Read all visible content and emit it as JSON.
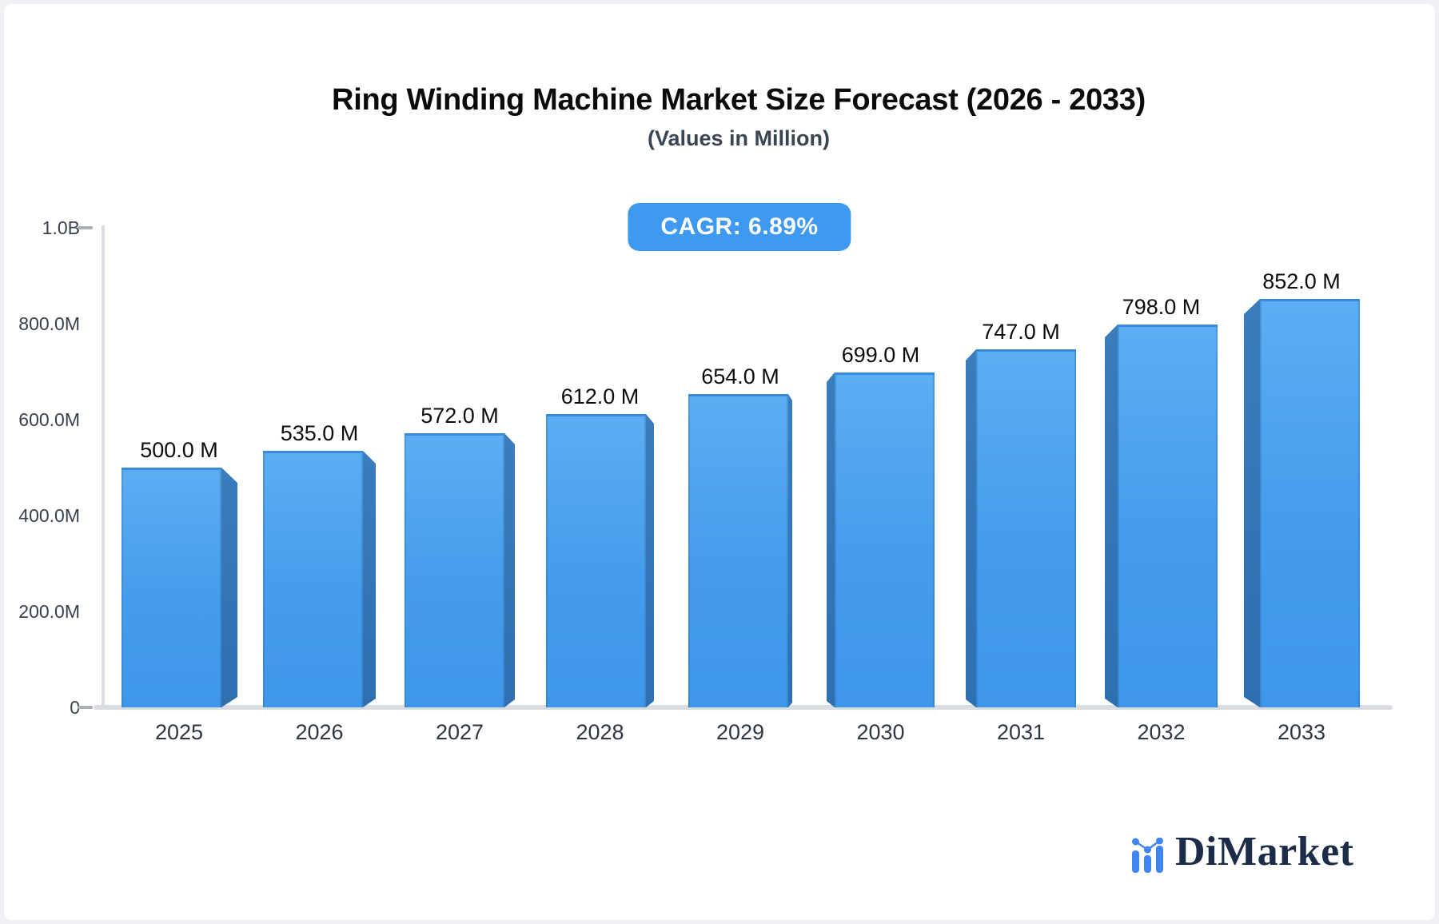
{
  "header": {
    "title": "Ring Winding Machine Market Size Forecast (2026 - 2033)",
    "subtitle": "(Values in Million)",
    "cagr_badge": "CAGR: 6.89%"
  },
  "chart_data": {
    "type": "bar",
    "title": "Ring Winding Machine Market Size Forecast (2026 - 2033)",
    "subtitle": "(Values in Million)",
    "cagr": "6.89%",
    "categories": [
      "2025",
      "2026",
      "2027",
      "2028",
      "2029",
      "2030",
      "2031",
      "2032",
      "2033"
    ],
    "values": [
      500,
      535,
      572,
      612,
      654,
      699,
      747,
      798,
      852
    ],
    "value_labels": [
      "500.0 M",
      "535.0 M",
      "572.0 M",
      "612.0 M",
      "654.0 M",
      "699.0 M",
      "747.0 M",
      "798.0 M",
      "852.0 M"
    ],
    "ylim": [
      0,
      1000
    ],
    "yticks": [
      {
        "label": "0",
        "value": 0
      },
      {
        "label": "200.0M",
        "value": 200
      },
      {
        "label": "400.0M",
        "value": 400
      },
      {
        "label": "600.0M",
        "value": 600
      },
      {
        "label": "800.0M",
        "value": 800
      },
      {
        "label": "1.0B",
        "value": 1000
      }
    ],
    "grid": false,
    "legend": null,
    "bar_face_color": "#459cec",
    "bar_side_color": "#2f74b8",
    "badge_color": "#3d9af0"
  },
  "branding": {
    "logo_text": "DiMarket",
    "logo_icon": "bar-chart-trend-icon",
    "logo_icon_color": "#3f86f2",
    "logo_text_color": "#1c2b47"
  }
}
